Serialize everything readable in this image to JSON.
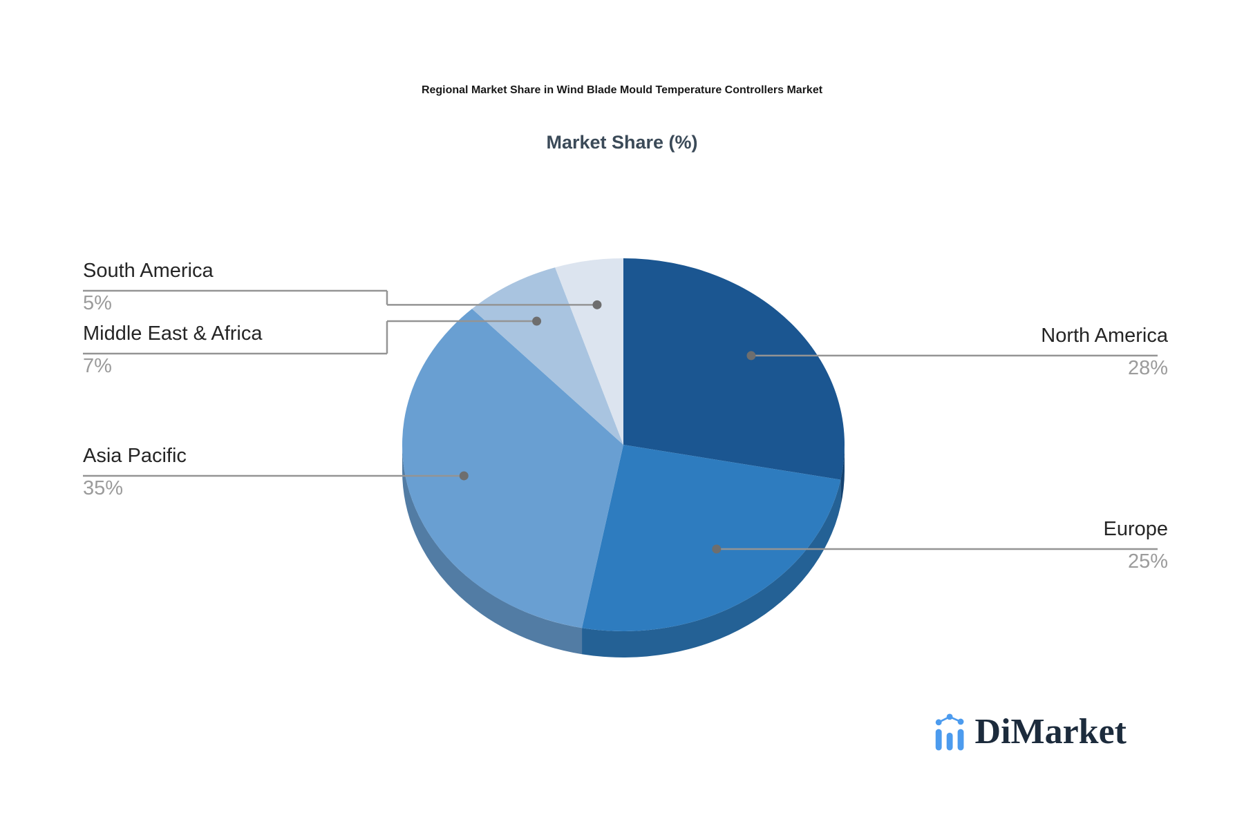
{
  "chart_data": {
    "type": "pie",
    "style": "3d",
    "title": "Regional Market Share in Wind Blade Mould Temperature Controllers Market",
    "subtitle": "Market Share (%)",
    "unit": "%",
    "start_angle": 0,
    "direction": "clockwise",
    "legend": "none",
    "categories": [
      "North America",
      "Europe",
      "Asia Pacific",
      "Middle East & Africa",
      "South America"
    ],
    "values": [
      28,
      25,
      35,
      7,
      5
    ],
    "slices": [
      {
        "label": "North America",
        "value": 28,
        "display_value": "28%",
        "color": "#1B5691"
      },
      {
        "label": "Europe",
        "value": 25,
        "display_value": "25%",
        "color": "#2E7CBF"
      },
      {
        "label": "Asia Pacific",
        "value": 35,
        "display_value": "35%",
        "color": "#699FD2"
      },
      {
        "label": "Middle East & Africa",
        "value": 7,
        "display_value": "7%",
        "color": "#A9C4E0"
      },
      {
        "label": "South America",
        "value": 5,
        "display_value": "5%",
        "color": "#DCE4EF"
      }
    ],
    "leader_line_color": "#949494",
    "leader_dot_color": "#6E6E6E",
    "label_color": "#252525",
    "value_color": "#9B9B9B"
  },
  "branding": {
    "logo_text": "DiMarket",
    "logo_icon": "bar-line-chart-icon",
    "logo_icon_color": "#4C9BEE",
    "logo_text_color": "#1C2B3C"
  }
}
